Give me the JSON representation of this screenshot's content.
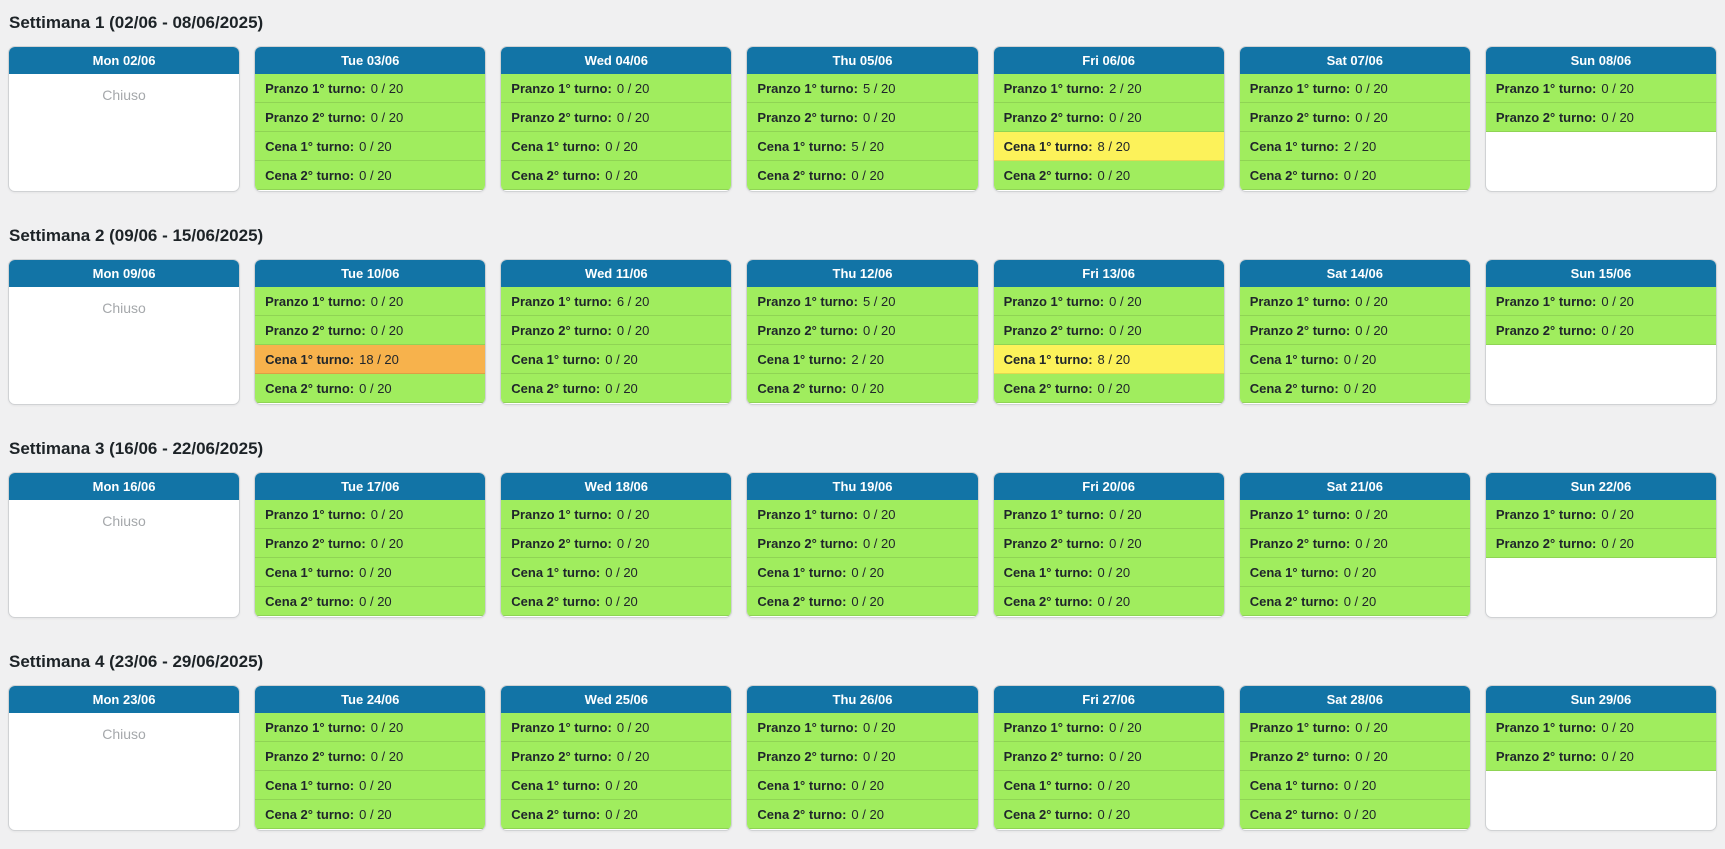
{
  "page": {
    "closed_text": "Chiuso",
    "capacity_per_slot": 20
  },
  "colors": {
    "background": "#f0f0f1",
    "header_blue": "#1274a6",
    "slot_green": "#a0ed5e",
    "slot_yellow": "#fcf25a",
    "slot_orange": "#f7b24c",
    "card_border": "#d0d2d4",
    "title_text": "#1d2327",
    "closed_text_color": "#a5a8ab"
  },
  "weeks": [
    {
      "title": "Settimana 1 (02/06 - 08/06/2025)",
      "days": [
        {
          "label": "Mon 02/06",
          "closed": true
        },
        {
          "label": "Tue 03/06",
          "closed": false,
          "slots": [
            {
              "label": "Pranzo 1° turno:",
              "value": "0 / 20",
              "status": "green"
            },
            {
              "label": "Pranzo 2° turno:",
              "value": "0 / 20",
              "status": "green"
            },
            {
              "label": "Cena 1° turno:",
              "value": "0 / 20",
              "status": "green"
            },
            {
              "label": "Cena 2° turno:",
              "value": "0 / 20",
              "status": "green"
            }
          ]
        },
        {
          "label": "Wed 04/06",
          "closed": false,
          "slots": [
            {
              "label": "Pranzo 1° turno:",
              "value": "0 / 20",
              "status": "green"
            },
            {
              "label": "Pranzo 2° turno:",
              "value": "0 / 20",
              "status": "green"
            },
            {
              "label": "Cena 1° turno:",
              "value": "0 / 20",
              "status": "green"
            },
            {
              "label": "Cena 2° turno:",
              "value": "0 / 20",
              "status": "green"
            }
          ]
        },
        {
          "label": "Thu 05/06",
          "closed": false,
          "slots": [
            {
              "label": "Pranzo 1° turno:",
              "value": "5 / 20",
              "status": "green"
            },
            {
              "label": "Pranzo 2° turno:",
              "value": "0 / 20",
              "status": "green"
            },
            {
              "label": "Cena 1° turno:",
              "value": "5 / 20",
              "status": "green"
            },
            {
              "label": "Cena 2° turno:",
              "value": "0 / 20",
              "status": "green"
            }
          ]
        },
        {
          "label": "Fri 06/06",
          "closed": false,
          "slots": [
            {
              "label": "Pranzo 1° turno:",
              "value": "2 / 20",
              "status": "green"
            },
            {
              "label": "Pranzo 2° turno:",
              "value": "0 / 20",
              "status": "green"
            },
            {
              "label": "Cena 1° turno:",
              "value": "8 / 20",
              "status": "yellow"
            },
            {
              "label": "Cena 2° turno:",
              "value": "0 / 20",
              "status": "green"
            }
          ]
        },
        {
          "label": "Sat 07/06",
          "closed": false,
          "slots": [
            {
              "label": "Pranzo 1° turno:",
              "value": "0 / 20",
              "status": "green"
            },
            {
              "label": "Pranzo 2° turno:",
              "value": "0 / 20",
              "status": "green"
            },
            {
              "label": "Cena 1° turno:",
              "value": "2 / 20",
              "status": "green"
            },
            {
              "label": "Cena 2° turno:",
              "value": "0 / 20",
              "status": "green"
            }
          ]
        },
        {
          "label": "Sun 08/06",
          "closed": false,
          "slots": [
            {
              "label": "Pranzo 1° turno:",
              "value": "0 / 20",
              "status": "green"
            },
            {
              "label": "Pranzo 2° turno:",
              "value": "0 / 20",
              "status": "green"
            }
          ]
        }
      ]
    },
    {
      "title": "Settimana 2 (09/06 - 15/06/2025)",
      "days": [
        {
          "label": "Mon 09/06",
          "closed": true
        },
        {
          "label": "Tue 10/06",
          "closed": false,
          "slots": [
            {
              "label": "Pranzo 1° turno:",
              "value": "0 / 20",
              "status": "green"
            },
            {
              "label": "Pranzo 2° turno:",
              "value": "0 / 20",
              "status": "green"
            },
            {
              "label": "Cena 1° turno:",
              "value": "18 / 20",
              "status": "orange"
            },
            {
              "label": "Cena 2° turno:",
              "value": "0 / 20",
              "status": "green"
            }
          ]
        },
        {
          "label": "Wed 11/06",
          "closed": false,
          "slots": [
            {
              "label": "Pranzo 1° turno:",
              "value": "6 / 20",
              "status": "green"
            },
            {
              "label": "Pranzo 2° turno:",
              "value": "0 / 20",
              "status": "green"
            },
            {
              "label": "Cena 1° turno:",
              "value": "0 / 20",
              "status": "green"
            },
            {
              "label": "Cena 2° turno:",
              "value": "0 / 20",
              "status": "green"
            }
          ]
        },
        {
          "label": "Thu 12/06",
          "closed": false,
          "slots": [
            {
              "label": "Pranzo 1° turno:",
              "value": "5 / 20",
              "status": "green"
            },
            {
              "label": "Pranzo 2° turno:",
              "value": "0 / 20",
              "status": "green"
            },
            {
              "label": "Cena 1° turno:",
              "value": "2 / 20",
              "status": "green"
            },
            {
              "label": "Cena 2° turno:",
              "value": "0 / 20",
              "status": "green"
            }
          ]
        },
        {
          "label": "Fri 13/06",
          "closed": false,
          "slots": [
            {
              "label": "Pranzo 1° turno:",
              "value": "0 / 20",
              "status": "green"
            },
            {
              "label": "Pranzo 2° turno:",
              "value": "0 / 20",
              "status": "green"
            },
            {
              "label": "Cena 1° turno:",
              "value": "8 / 20",
              "status": "yellow"
            },
            {
              "label": "Cena 2° turno:",
              "value": "0 / 20",
              "status": "green"
            }
          ]
        },
        {
          "label": "Sat 14/06",
          "closed": false,
          "slots": [
            {
              "label": "Pranzo 1° turno:",
              "value": "0 / 20",
              "status": "green"
            },
            {
              "label": "Pranzo 2° turno:",
              "value": "0 / 20",
              "status": "green"
            },
            {
              "label": "Cena 1° turno:",
              "value": "0 / 20",
              "status": "green"
            },
            {
              "label": "Cena 2° turno:",
              "value": "0 / 20",
              "status": "green"
            }
          ]
        },
        {
          "label": "Sun 15/06",
          "closed": false,
          "slots": [
            {
              "label": "Pranzo 1° turno:",
              "value": "0 / 20",
              "status": "green"
            },
            {
              "label": "Pranzo 2° turno:",
              "value": "0 / 20",
              "status": "green"
            }
          ]
        }
      ]
    },
    {
      "title": "Settimana 3 (16/06 - 22/06/2025)",
      "days": [
        {
          "label": "Mon 16/06",
          "closed": true
        },
        {
          "label": "Tue 17/06",
          "closed": false,
          "slots": [
            {
              "label": "Pranzo 1° turno:",
              "value": "0 / 20",
              "status": "green"
            },
            {
              "label": "Pranzo 2° turno:",
              "value": "0 / 20",
              "status": "green"
            },
            {
              "label": "Cena 1° turno:",
              "value": "0 / 20",
              "status": "green"
            },
            {
              "label": "Cena 2° turno:",
              "value": "0 / 20",
              "status": "green"
            }
          ]
        },
        {
          "label": "Wed 18/06",
          "closed": false,
          "slots": [
            {
              "label": "Pranzo 1° turno:",
              "value": "0 / 20",
              "status": "green"
            },
            {
              "label": "Pranzo 2° turno:",
              "value": "0 / 20",
              "status": "green"
            },
            {
              "label": "Cena 1° turno:",
              "value": "0 / 20",
              "status": "green"
            },
            {
              "label": "Cena 2° turno:",
              "value": "0 / 20",
              "status": "green"
            }
          ]
        },
        {
          "label": "Thu 19/06",
          "closed": false,
          "slots": [
            {
              "label": "Pranzo 1° turno:",
              "value": "0 / 20",
              "status": "green"
            },
            {
              "label": "Pranzo 2° turno:",
              "value": "0 / 20",
              "status": "green"
            },
            {
              "label": "Cena 1° turno:",
              "value": "0 / 20",
              "status": "green"
            },
            {
              "label": "Cena 2° turno:",
              "value": "0 / 20",
              "status": "green"
            }
          ]
        },
        {
          "label": "Fri 20/06",
          "closed": false,
          "slots": [
            {
              "label": "Pranzo 1° turno:",
              "value": "0 / 20",
              "status": "green"
            },
            {
              "label": "Pranzo 2° turno:",
              "value": "0 / 20",
              "status": "green"
            },
            {
              "label": "Cena 1° turno:",
              "value": "0 / 20",
              "status": "green"
            },
            {
              "label": "Cena 2° turno:",
              "value": "0 / 20",
              "status": "green"
            }
          ]
        },
        {
          "label": "Sat 21/06",
          "closed": false,
          "slots": [
            {
              "label": "Pranzo 1° turno:",
              "value": "0 / 20",
              "status": "green"
            },
            {
              "label": "Pranzo 2° turno:",
              "value": "0 / 20",
              "status": "green"
            },
            {
              "label": "Cena 1° turno:",
              "value": "0 / 20",
              "status": "green"
            },
            {
              "label": "Cena 2° turno:",
              "value": "0 / 20",
              "status": "green"
            }
          ]
        },
        {
          "label": "Sun 22/06",
          "closed": false,
          "slots": [
            {
              "label": "Pranzo 1° turno:",
              "value": "0 / 20",
              "status": "green"
            },
            {
              "label": "Pranzo 2° turno:",
              "value": "0 / 20",
              "status": "green"
            }
          ]
        }
      ]
    },
    {
      "title": "Settimana 4 (23/06 - 29/06/2025)",
      "days": [
        {
          "label": "Mon 23/06",
          "closed": true
        },
        {
          "label": "Tue 24/06",
          "closed": false,
          "slots": [
            {
              "label": "Pranzo 1° turno:",
              "value": "0 / 20",
              "status": "green"
            },
            {
              "label": "Pranzo 2° turno:",
              "value": "0 / 20",
              "status": "green"
            },
            {
              "label": "Cena 1° turno:",
              "value": "0 / 20",
              "status": "green"
            },
            {
              "label": "Cena 2° turno:",
              "value": "0 / 20",
              "status": "green"
            }
          ]
        },
        {
          "label": "Wed 25/06",
          "closed": false,
          "slots": [
            {
              "label": "Pranzo 1° turno:",
              "value": "0 / 20",
              "status": "green"
            },
            {
              "label": "Pranzo 2° turno:",
              "value": "0 / 20",
              "status": "green"
            },
            {
              "label": "Cena 1° turno:",
              "value": "0 / 20",
              "status": "green"
            },
            {
              "label": "Cena 2° turno:",
              "value": "0 / 20",
              "status": "green"
            }
          ]
        },
        {
          "label": "Thu 26/06",
          "closed": false,
          "slots": [
            {
              "label": "Pranzo 1° turno:",
              "value": "0 / 20",
              "status": "green"
            },
            {
              "label": "Pranzo 2° turno:",
              "value": "0 / 20",
              "status": "green"
            },
            {
              "label": "Cena 1° turno:",
              "value": "0 / 20",
              "status": "green"
            },
            {
              "label": "Cena 2° turno:",
              "value": "0 / 20",
              "status": "green"
            }
          ]
        },
        {
          "label": "Fri 27/06",
          "closed": false,
          "slots": [
            {
              "label": "Pranzo 1° turno:",
              "value": "0 / 20",
              "status": "green"
            },
            {
              "label": "Pranzo 2° turno:",
              "value": "0 / 20",
              "status": "green"
            },
            {
              "label": "Cena 1° turno:",
              "value": "0 / 20",
              "status": "green"
            },
            {
              "label": "Cena 2° turno:",
              "value": "0 / 20",
              "status": "green"
            }
          ]
        },
        {
          "label": "Sat 28/06",
          "closed": false,
          "slots": [
            {
              "label": "Pranzo 1° turno:",
              "value": "0 / 20",
              "status": "green"
            },
            {
              "label": "Pranzo 2° turno:",
              "value": "0 / 20",
              "status": "green"
            },
            {
              "label": "Cena 1° turno:",
              "value": "0 / 20",
              "status": "green"
            },
            {
              "label": "Cena 2° turno:",
              "value": "0 / 20",
              "status": "green"
            }
          ]
        },
        {
          "label": "Sun 29/06",
          "closed": false,
          "slots": [
            {
              "label": "Pranzo 1° turno:",
              "value": "0 / 20",
              "status": "green"
            },
            {
              "label": "Pranzo 2° turno:",
              "value": "0 / 20",
              "status": "green"
            }
          ]
        }
      ]
    }
  ]
}
